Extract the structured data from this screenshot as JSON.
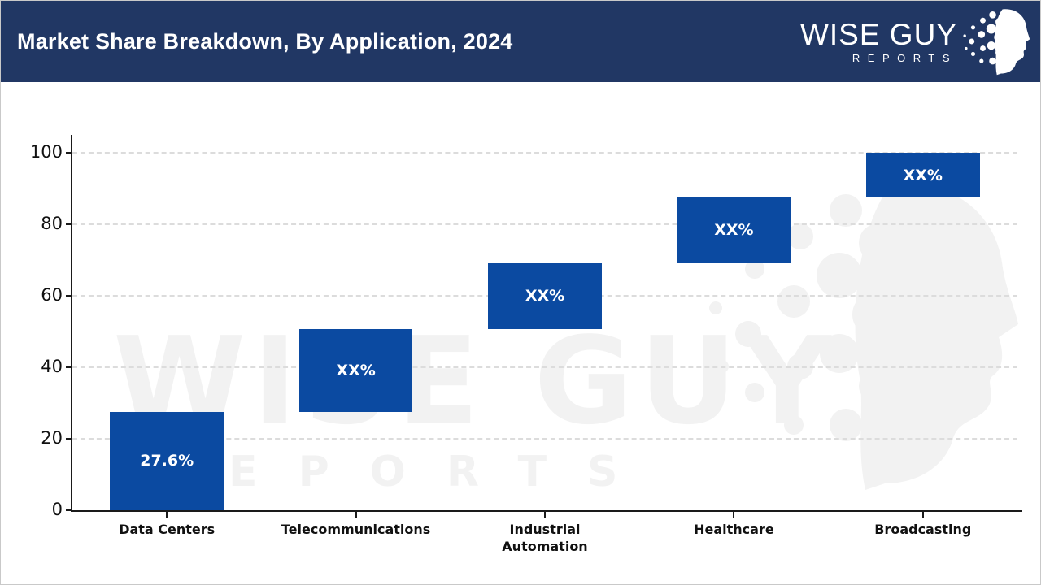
{
  "header": {
    "title": "Market Share Breakdown, By Application, 2024",
    "bg_color": "#213764",
    "logo": {
      "line1": "WISE GUY",
      "line2": "REPORTS"
    }
  },
  "chart_data": {
    "type": "bar",
    "subtype": "waterfall",
    "title": "Market Share Breakdown, By Application, 2024",
    "xlabel": "",
    "ylabel": "",
    "categories": [
      "Data Centers",
      "Telecommunications",
      "Industrial Automation",
      "Healthcare",
      "Broadcasting"
    ],
    "segments": [
      {
        "category": "Data Centers",
        "start": 0,
        "end": 27.6,
        "label": "27.6%"
      },
      {
        "category": "Telecommunications",
        "start": 27.6,
        "end": 50.7,
        "label": "XX%"
      },
      {
        "category": "Industrial Automation",
        "start": 50.7,
        "end": 69.1,
        "label": "XX%"
      },
      {
        "category": "Healthcare",
        "start": 69.1,
        "end": 87.5,
        "label": "XX%"
      },
      {
        "category": "Broadcasting",
        "start": 87.5,
        "end": 100,
        "label": "XX%"
      }
    ],
    "y_ticks": [
      0,
      20,
      40,
      60,
      80,
      100
    ],
    "ylim": [
      0,
      105
    ],
    "grid": "horizontal-dashed",
    "legend": "none",
    "bar_color": "#0b4aa1",
    "grid_color": "#dcdcdc",
    "axis_color": "#1a1a1a",
    "watermark": {
      "line1": "WISE GUY",
      "line2": "REPORTS"
    }
  }
}
